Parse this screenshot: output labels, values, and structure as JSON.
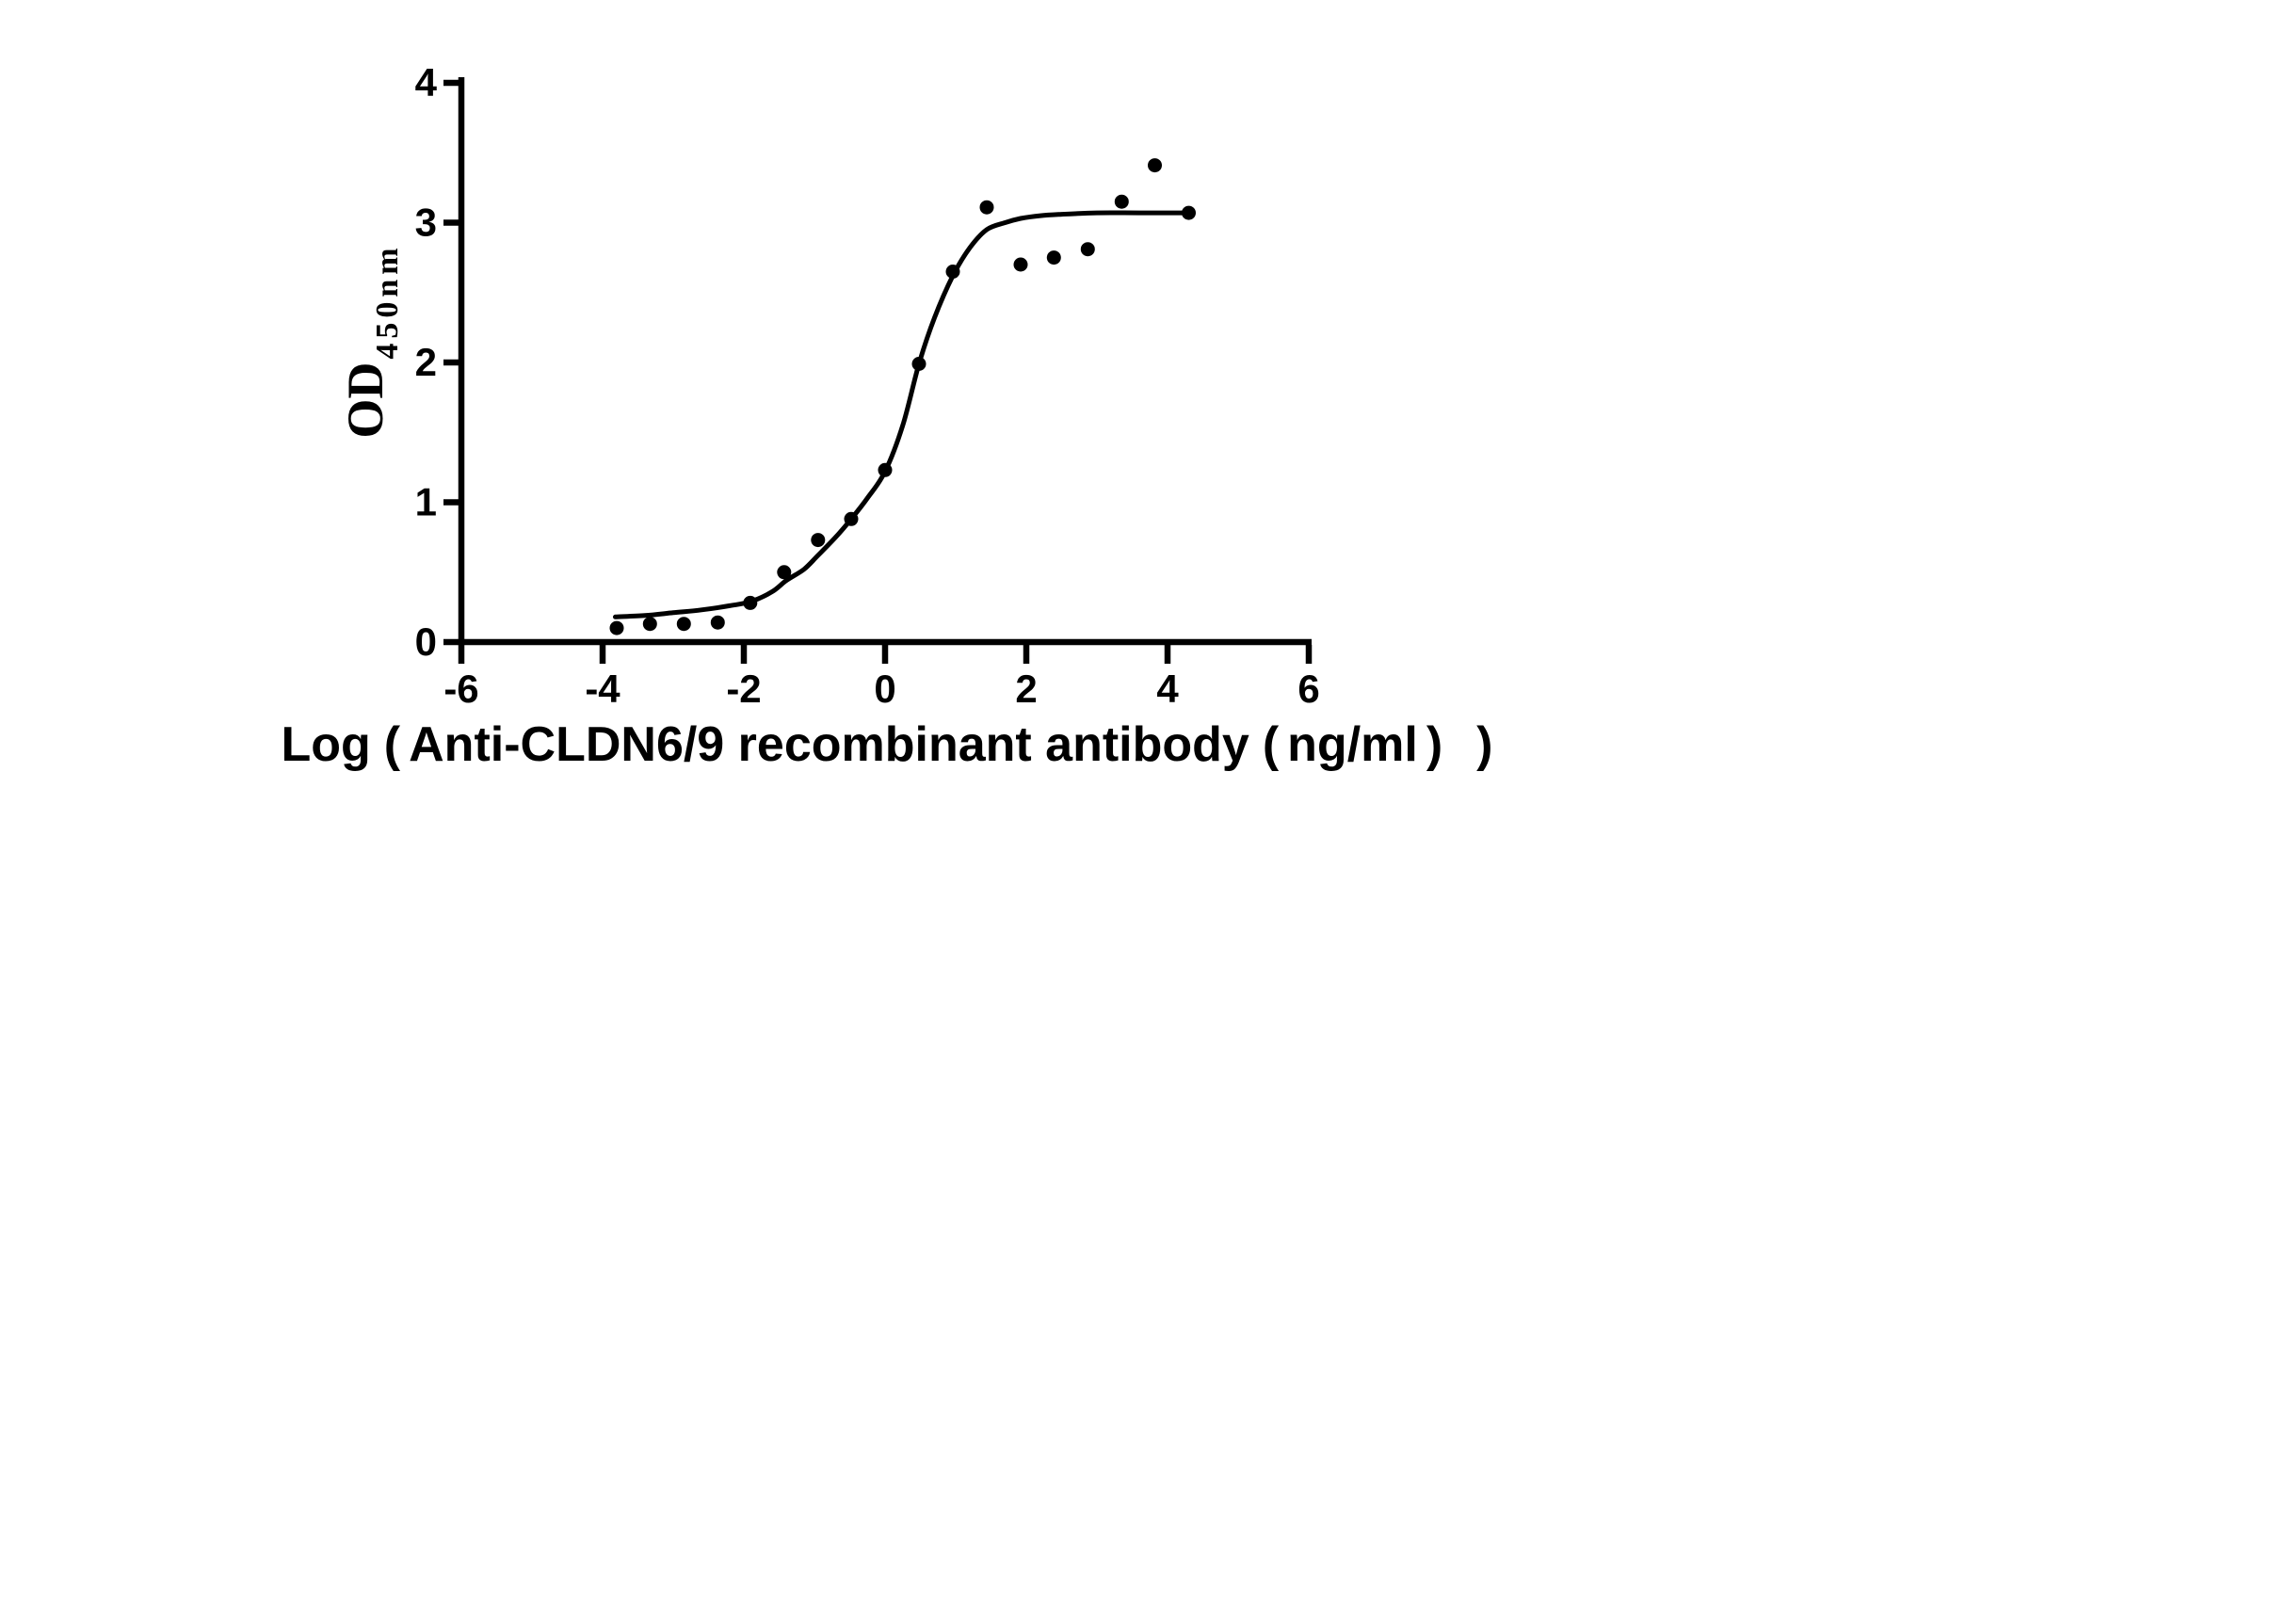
{
  "figure": {
    "background_color": "#ffffff",
    "ink_color": "#000000"
  },
  "chart_data": {
    "type": "scatter",
    "title": "",
    "grid": false,
    "legend": false,
    "x_axis": {
      "title_full": "Log（Anti-CLDN6/9 recombinant antibody（ng/ml）)",
      "title_parts": [
        "Log",
        "(",
        "Anti-CLDN6/9 recombinant antibody",
        "(",
        "ng/ml",
        ")",
        ")"
      ],
      "tick_labels": [
        "-6",
        "-4",
        "-2",
        "0",
        "2",
        "4",
        "6"
      ],
      "range": [
        -6,
        6
      ]
    },
    "y_axis": {
      "title_main": "OD",
      "title_sub": "450nm",
      "tick_labels": [
        "0",
        "1",
        "2",
        "3",
        "4"
      ],
      "range": [
        0,
        4
      ]
    },
    "series": [
      {
        "name": "od-measurements",
        "type": "scatter",
        "marker": "filled-circle",
        "color": "#000000",
        "points": [
          [
            -3.8,
            0.1
          ],
          [
            -3.33,
            0.13
          ],
          [
            -2.85,
            0.13
          ],
          [
            -2.37,
            0.14
          ],
          [
            -1.91,
            0.28
          ],
          [
            -1.43,
            0.5
          ],
          [
            -0.95,
            0.73
          ],
          [
            -0.48,
            0.88
          ],
          [
            0.0,
            1.23
          ],
          [
            0.48,
            1.99
          ],
          [
            0.96,
            2.65
          ],
          [
            1.44,
            3.11
          ],
          [
            1.92,
            2.7
          ],
          [
            2.39,
            2.75
          ],
          [
            2.87,
            2.81
          ],
          [
            3.35,
            3.15
          ],
          [
            3.82,
            3.41
          ],
          [
            4.3,
            3.07
          ]
        ]
      },
      {
        "name": "sigmoidal-fit-curve",
        "type": "line",
        "color": "#000000",
        "points": [
          [
            -3.82,
            0.18
          ],
          [
            -3.4,
            0.19
          ],
          [
            -3.0,
            0.21
          ],
          [
            -2.6,
            0.23
          ],
          [
            -2.2,
            0.26
          ],
          [
            -1.9,
            0.29
          ],
          [
            -1.6,
            0.36
          ],
          [
            -1.4,
            0.44
          ],
          [
            -1.15,
            0.52
          ],
          [
            -0.95,
            0.62
          ],
          [
            -0.7,
            0.75
          ],
          [
            -0.48,
            0.88
          ],
          [
            -0.25,
            1.03
          ],
          [
            0.0,
            1.22
          ],
          [
            0.25,
            1.55
          ],
          [
            0.48,
            1.99
          ],
          [
            0.7,
            2.32
          ],
          [
            0.96,
            2.62
          ],
          [
            1.2,
            2.82
          ],
          [
            1.44,
            2.95
          ],
          [
            1.7,
            3.0
          ],
          [
            1.92,
            3.03
          ],
          [
            2.2,
            3.05
          ],
          [
            2.5,
            3.06
          ],
          [
            3.0,
            3.07
          ],
          [
            3.6,
            3.07
          ],
          [
            4.3,
            3.07
          ]
        ]
      }
    ]
  }
}
